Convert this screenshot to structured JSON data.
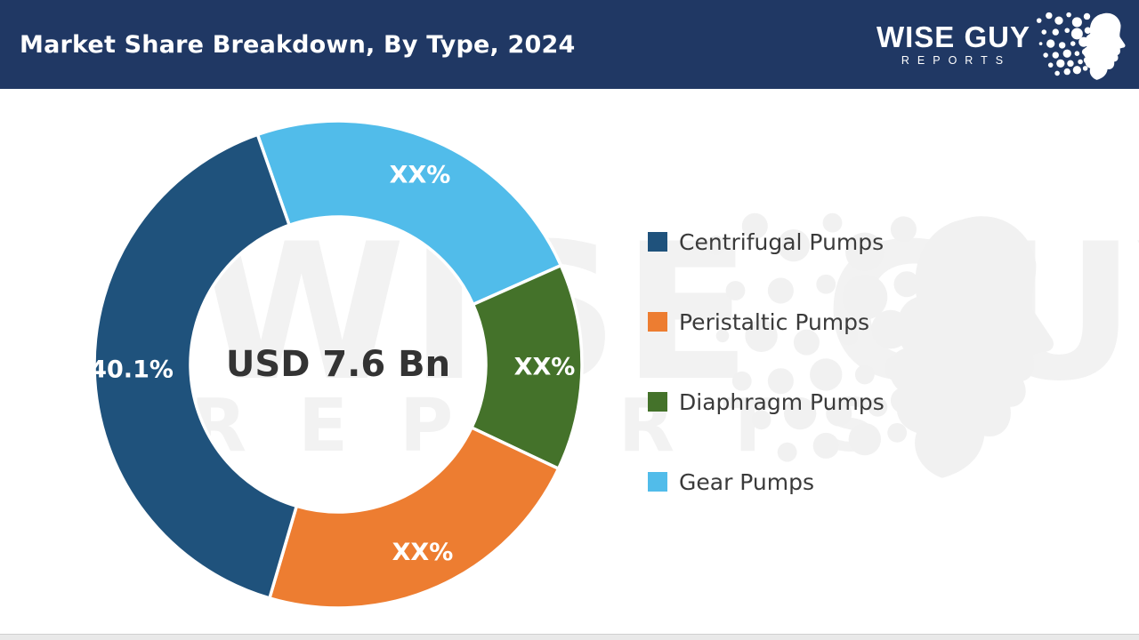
{
  "header": {
    "title": "Market Share Breakdown, By Type, 2024",
    "background_color": "#203864",
    "logo": {
      "brand_top": "WISE GUY",
      "brand_bottom": "REPORTS"
    }
  },
  "chart_data": {
    "type": "donut",
    "title": "Market Share Breakdown, By Type, 2024",
    "center_label": "USD 7.6 Bn",
    "start_angle_css_deg": -19.3,
    "segments": [
      {
        "label": "Gear Pumps",
        "display_value": "XX%",
        "percent": 23.7,
        "color": "#51BCEA"
      },
      {
        "label": "Diaphragm Pumps",
        "display_value": "XX%",
        "percent": 13.7,
        "color": "#44722A"
      },
      {
        "label": "Peristaltic Pumps",
        "display_value": "XX%",
        "percent": 22.5,
        "color": "#ED7D31"
      },
      {
        "label": "Centrifugal Pumps",
        "display_value": "40.1%",
        "percent": 40.1,
        "color": "#1F527C"
      }
    ],
    "legend_order": [
      "Centrifugal Pumps",
      "Peristaltic Pumps",
      "Diaphragm Pumps",
      "Gear Pumps"
    ],
    "legend_position": "right",
    "gap_color": "#ffffff"
  },
  "watermark": {
    "line1": "WISE GUY",
    "line2": "REPORTS"
  },
  "footer": {
    "background_color": "#e9e9e9"
  }
}
